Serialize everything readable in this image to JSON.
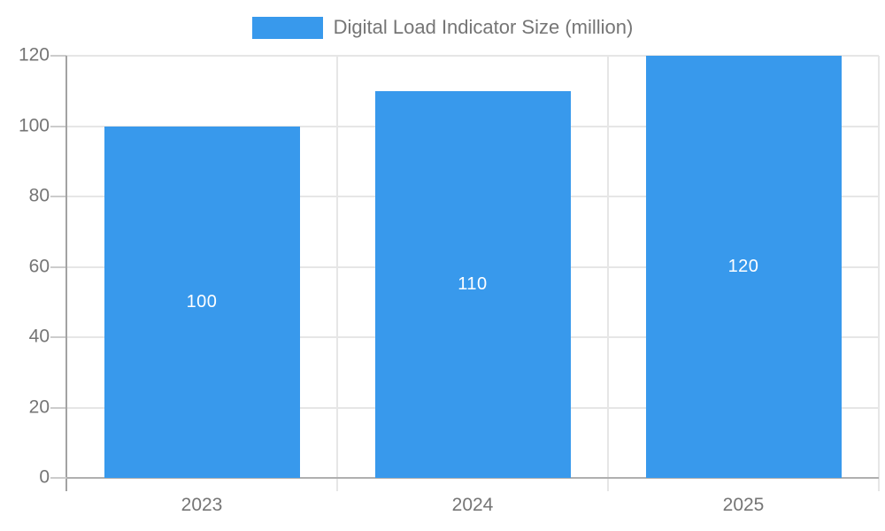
{
  "legend": {
    "label": "Digital Load Indicator Size (million)"
  },
  "chart_data": {
    "type": "bar",
    "title": "Digital Load Indicator Size (million)",
    "categories": [
      "2023",
      "2024",
      "2025"
    ],
    "series": [
      {
        "name": "Digital Load Indicator Size (million)",
        "values": [
          100,
          110,
          120
        ]
      }
    ],
    "data_labels": [
      "100",
      "110",
      "120"
    ],
    "xlabel": "",
    "ylabel": "",
    "ylim": [
      0,
      120
    ],
    "yticks": [
      0,
      20,
      40,
      60,
      80,
      100,
      120
    ],
    "grid": true,
    "legend_position": "top"
  },
  "colors": {
    "bar": "#3899EC",
    "axis_text": "#757575",
    "bar_label_text": "#FFFFFF",
    "gridline": "#E6E6E6",
    "tick_stub": "#CCCCCC",
    "y_axis_line": "#A3A3A3",
    "x_axis_line": "#B0B0B0",
    "background": "#FFFFFF"
  }
}
